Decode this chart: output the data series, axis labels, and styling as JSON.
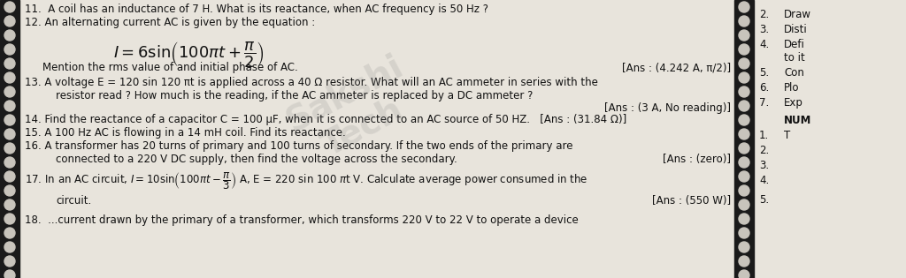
{
  "bg_color": "#d8d4cc",
  "main_bg": "#e8e4dc",
  "text_color": "#111111",
  "dot_color": "#333333",
  "dot_bg": "#222222",
  "lines_12_to_17": [
    "12. An alternating current AC is given by the equation :",
    "13. A voltage E = 120 sin 120 πt is applied across a 40 Ω resistor. What will an AC ammeter in series with the",
    "14. Find the reactance of a capacitor C = 100 μF, when it is connected to an AC source of 50 HZ.",
    "15. A 100 Hz AC is flowing in a 14 mH coil. Find its reactance.",
    "16. A transformer has 20 turns of primary and 100 turns of secondary. If the two ends of the primary are",
    "17. In an AC circuit,"
  ],
  "ans_12": "[Ans : (4.242 A, π/2)]",
  "ans_13": "[Ans : (3 A, No reading)]",
  "ans_14": "[Ans : (31.84 Ω)]",
  "ans_16": "[Ans : (zero)]",
  "ans_17": "[Ans : (550 W)]",
  "right_items": [
    [
      "2.",
      "Draw"
    ],
    [
      "3.",
      "Disti"
    ],
    [
      "4.",
      "Defi"
    ],
    [
      "",
      "to it"
    ],
    [
      "5.",
      "Con"
    ],
    [
      "6.",
      "Plo"
    ],
    [
      "7.",
      "Exp"
    ],
    [
      "",
      "NUM"
    ],
    [
      "1.",
      "T"
    ],
    [
      "2.",
      ""
    ],
    [
      "3.",
      ""
    ],
    [
      "4.",
      ""
    ],
    [
      "5.",
      ""
    ]
  ]
}
